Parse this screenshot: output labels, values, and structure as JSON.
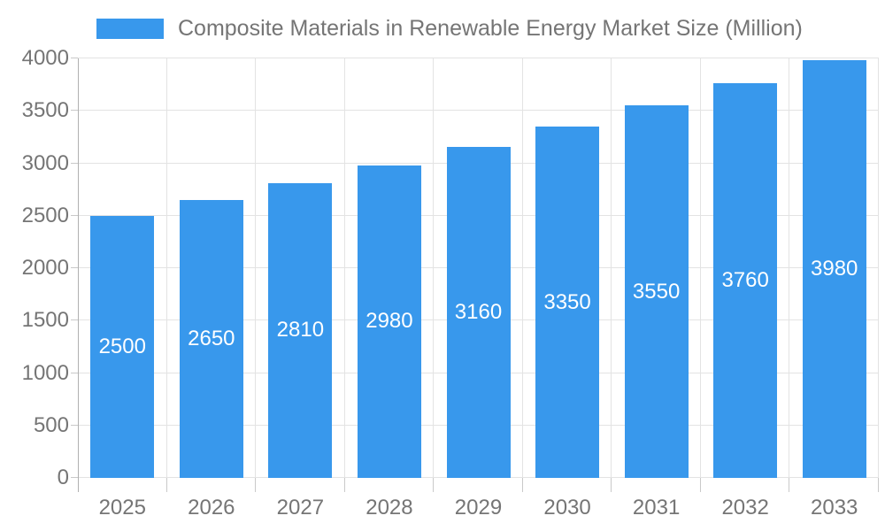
{
  "chart_data": {
    "type": "bar",
    "title": "Composite Materials in Renewable Energy Market Size (Million)",
    "categories": [
      "2025",
      "2026",
      "2027",
      "2028",
      "2029",
      "2030",
      "2031",
      "2032",
      "2033"
    ],
    "series": [
      {
        "name": "Composite Materials in Renewable Energy Market Size (Million)",
        "values": [
          2500,
          2650,
          2810,
          2980,
          3160,
          3350,
          3550,
          3760,
          3980
        ]
      }
    ],
    "xlabel": "",
    "ylabel": "",
    "ylim": [
      0,
      4000
    ],
    "y_ticks": [
      0,
      500,
      1000,
      1500,
      2000,
      2500,
      3000,
      3500,
      4000
    ],
    "grid": "horizontal-and-vertical",
    "legend_position": "top-left",
    "bar_label_position": "inside-middle"
  },
  "colors": {
    "bar": "#3898EC",
    "grid": "#e3e3e3",
    "tick": "#c9c9c9",
    "axis": "#b0b0b0",
    "text": "#757575",
    "bar_label": "#ffffff",
    "background": "#ffffff"
  }
}
